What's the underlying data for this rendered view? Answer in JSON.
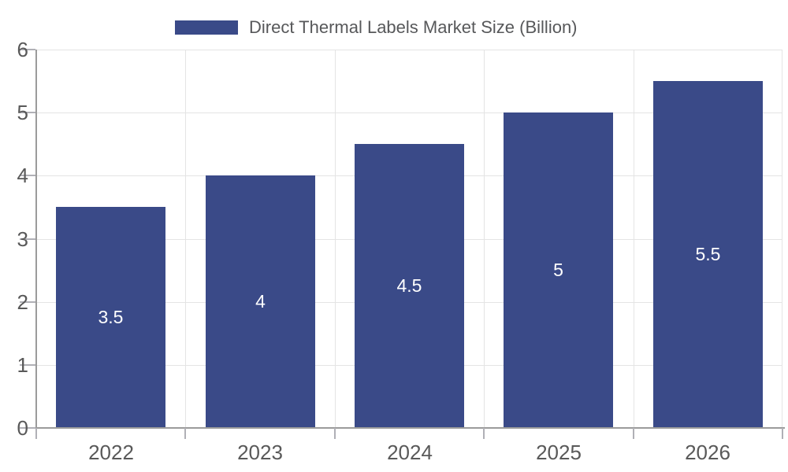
{
  "figure": {
    "background": "#FFFFFF"
  },
  "legend": {
    "position": "top-center",
    "label": "Direct Thermal Labels Market Size (Billion)"
  },
  "chart_data": {
    "type": "bar",
    "title": "Direct Thermal Labels Market Size (Billion)",
    "categories": [
      "2022",
      "2023",
      "2024",
      "2025",
      "2026"
    ],
    "values": [
      3.5,
      4,
      4.5,
      5,
      5.5
    ],
    "data_labels": [
      "3.5",
      "4",
      "4.5",
      "5",
      "5.5"
    ],
    "data_label_position": "inside-center",
    "xlabel": "",
    "ylabel": "",
    "ylim": [
      0,
      6
    ],
    "yticks": [
      "0",
      "1",
      "2",
      "3",
      "4",
      "5",
      "6"
    ],
    "grid": true,
    "legend_position": "top-center",
    "colors": {
      "bar": "#3A4A88",
      "data_label": "#FFFFFF",
      "axis_line": "#9B9B9B",
      "tick_mark": "#B0B0B6",
      "grid_line": "#E4E4E4",
      "tick_label": "#595959",
      "legend_text": "#57585A",
      "background": "#FFFFFF"
    }
  }
}
